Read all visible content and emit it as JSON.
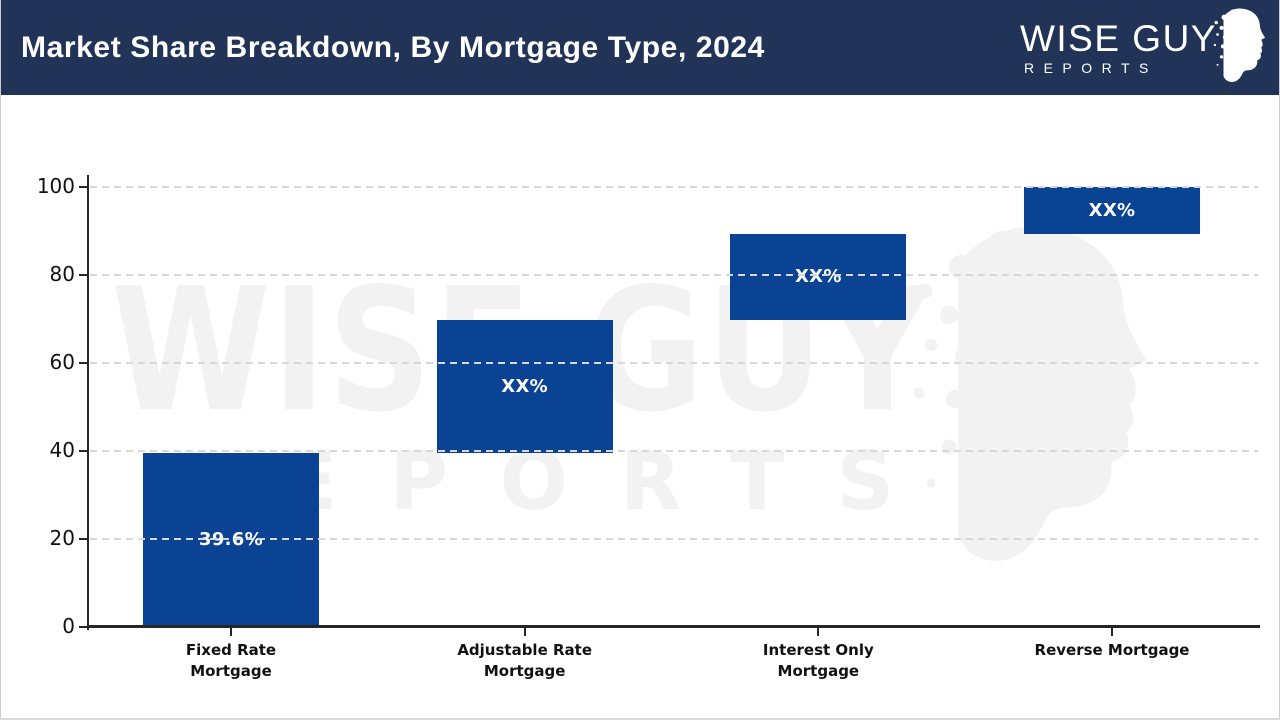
{
  "header": {
    "title": "Market Share Breakdown, By Mortgage Type, 2024",
    "logo": {
      "name": "Wise Guy Reports",
      "line1": "WISE GUY",
      "line2": "REPORTS"
    },
    "bg_color": "#213457"
  },
  "watermark": {
    "line1": "WISE GUY",
    "line2": "REPORTS"
  },
  "chart_data": {
    "type": "bar",
    "variant": "floating-segment market share bars (waterfall style)",
    "title": "Market Share Breakdown, By Mortgage Type, 2024",
    "categories": [
      "Fixed Rate Mortgage",
      "Adjustable Rate Mortgage",
      "Interest Only Mortgage",
      "Reverse Mortgage"
    ],
    "segments": [
      {
        "category": "Fixed Rate Mortgage",
        "tick_lines": [
          "Fixed Rate",
          "Mortgage"
        ],
        "start": 0,
        "end": 39.6,
        "label": "39.6%"
      },
      {
        "category": "Adjustable Rate Mortgage",
        "tick_lines": [
          "Adjustable Rate",
          "Mortgage"
        ],
        "start": 39.6,
        "end": 69.7,
        "label": "XX%"
      },
      {
        "category": "Interest Only Mortgage",
        "tick_lines": [
          "Interest Only",
          "Mortgage"
        ],
        "start": 69.7,
        "end": 89.4,
        "label": "XX%"
      },
      {
        "category": "Reverse Mortgage",
        "tick_lines": [
          "Reverse Mortgage"
        ],
        "start": 89.4,
        "end": 100,
        "label": "XX%"
      }
    ],
    "yticks": [
      0,
      20,
      40,
      60,
      80,
      100
    ],
    "ylim": [
      0,
      105
    ],
    "xlabel": "",
    "ylabel": "",
    "legend": "none",
    "grid": "horizontal dashed, drawn above bars",
    "bar_color": "#0b4394",
    "bar_label_color": "#ffffff",
    "axis_color": "#262626",
    "grid_color": "#d8d8d8",
    "tick_label_color": "#111111"
  }
}
